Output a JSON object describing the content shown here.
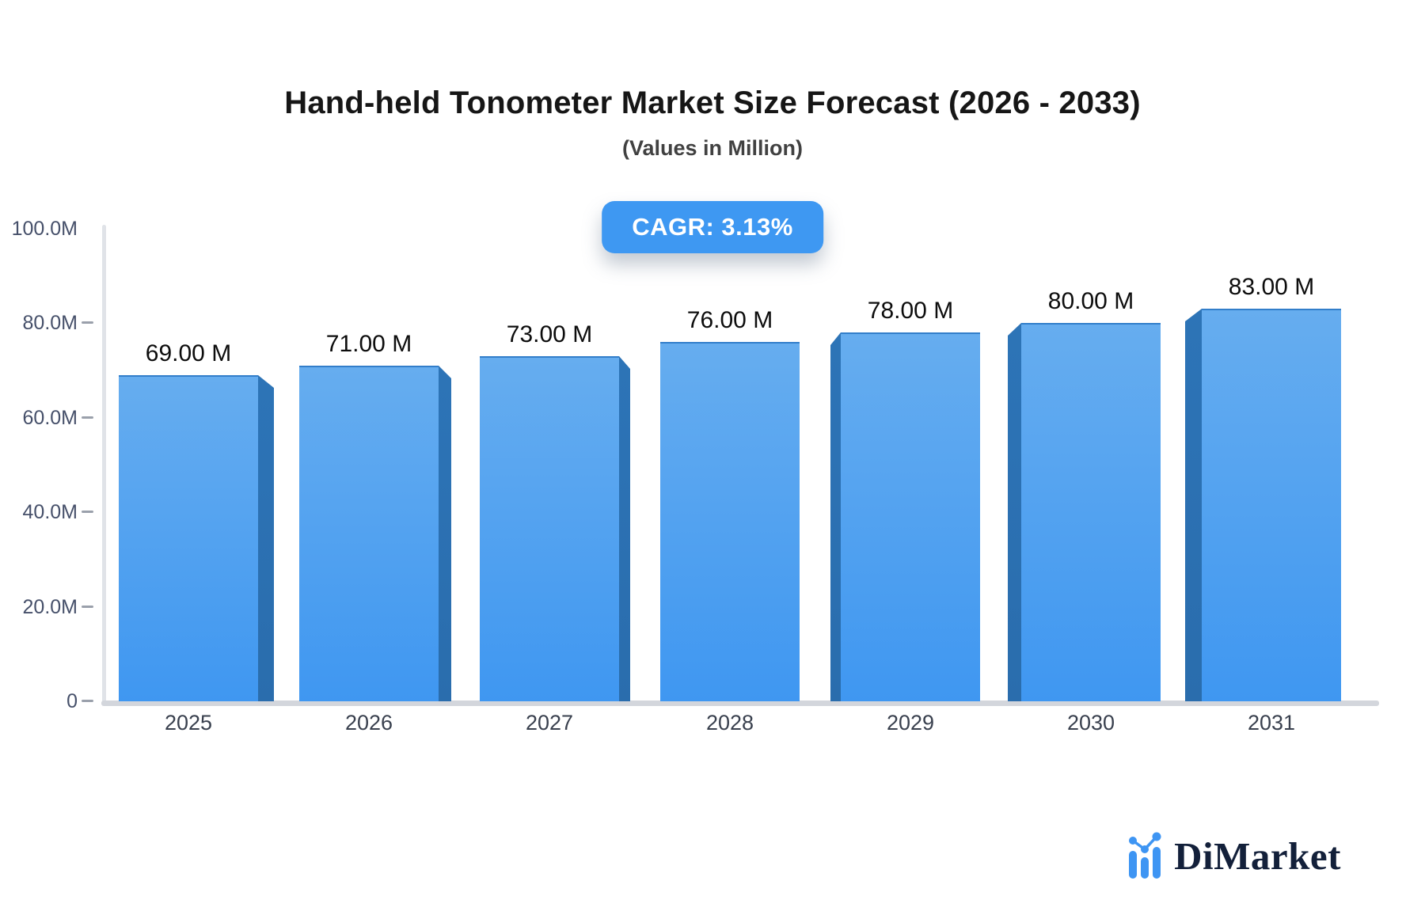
{
  "title": "Hand-held Tonometer Market Size Forecast (2026 - 2033)",
  "subtitle": "(Values in Million)",
  "cagr_badge": "CAGR: 3.13%",
  "logo": {
    "name": "DiMarket"
  },
  "chart_data": {
    "type": "bar",
    "title": "Hand-held Tonometer Market Size Forecast (2026 - 2033)",
    "subtitle": "(Values in Million)",
    "unit": "Million",
    "cagr": "3.13%",
    "categories": [
      "2025",
      "2026",
      "2027",
      "2028",
      "2029",
      "2030",
      "2031"
    ],
    "values": [
      69,
      71,
      73,
      76,
      78,
      80,
      83
    ],
    "bar_labels": [
      "69.00 M",
      "71.00 M",
      "73.00 M",
      "76.00 M",
      "78.00 M",
      "80.00 M",
      "83.00 M"
    ],
    "ylim": [
      0,
      100
    ],
    "y_ticks": [
      {
        "label": "100.0M",
        "value": 100
      },
      {
        "label": "80.0M",
        "value": 80
      },
      {
        "label": "60.0M",
        "value": 60
      },
      {
        "label": "40.0M",
        "value": 40
      },
      {
        "label": "20.0M",
        "value": 20
      },
      {
        "label": "0",
        "value": 0
      }
    ],
    "legend": "none",
    "grid": "off",
    "colors": {
      "bar_face_top": "#66adef",
      "bar_face_bottom": "#3f97f1",
      "bar_side": "#2d74b7",
      "badge_bg": "#3e98f2",
      "logo_blue": "#3e95f3",
      "logo_navy": "#13203a",
      "axis_gray": "#d3d6dc"
    }
  }
}
